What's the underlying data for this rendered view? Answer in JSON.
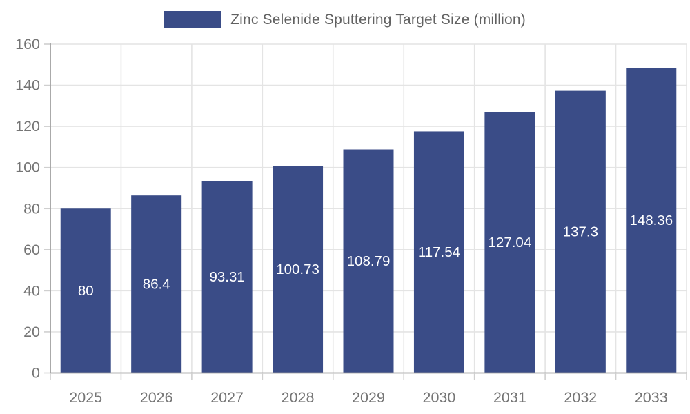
{
  "legend": {
    "label": "Zinc Selenide Sputtering Target Size (million)"
  },
  "chart_data": {
    "type": "bar",
    "title": "Zinc Selenide Sputtering Target Size (million)",
    "categories": [
      "2025",
      "2026",
      "2027",
      "2028",
      "2029",
      "2030",
      "2031",
      "2032",
      "2033"
    ],
    "values": [
      80,
      86.4,
      93.31,
      100.73,
      108.79,
      117.54,
      127.04,
      137.3,
      148.36
    ],
    "value_labels": [
      "80",
      "86.4",
      "93.31",
      "100.73",
      "108.79",
      "117.54",
      "127.04",
      "137.3",
      "148.36"
    ],
    "xlabel": "",
    "ylabel": "",
    "ylim": [
      0,
      160
    ],
    "yticks": [
      0,
      20,
      40,
      60,
      80,
      100,
      120,
      140,
      160
    ],
    "grid": true,
    "legend_position": "top-center",
    "colors": {
      "bar": "#3A4C87",
      "grid": "#e4e4e4",
      "axis": "#9e9e9e",
      "tick": "#cfcfcf",
      "axis_label": "#757575",
      "value_label": "#ffffff",
      "legend_text": "#616161"
    }
  }
}
